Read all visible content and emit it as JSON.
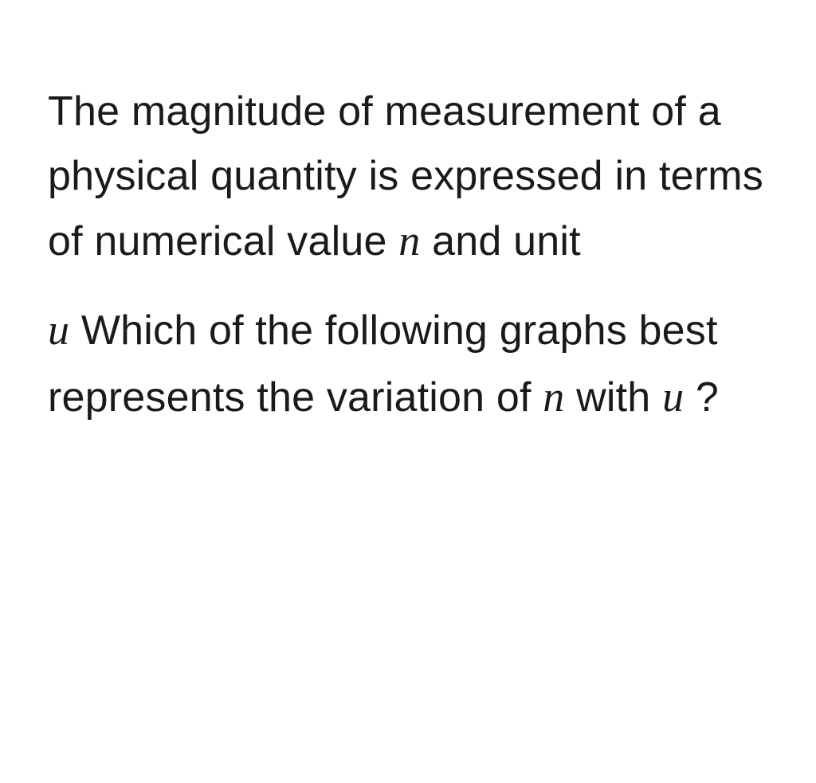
{
  "question": {
    "text_color": "#1a1a1a",
    "background_color": "#ffffff",
    "font_size_pt": 39,
    "math_font_size_pt": 40,
    "line1_a": "The magnitude of measurement of a physical quantity is expressed in terms of numerical value ",
    "var_n_1": "n",
    "line1_b": " and unit",
    "var_u_1": "u",
    "line2_a": " Which of the following graphs best represents the variation of ",
    "var_n_2": "n",
    "line2_b": " with ",
    "var_u_2": "u",
    "line2_c": " ?"
  }
}
